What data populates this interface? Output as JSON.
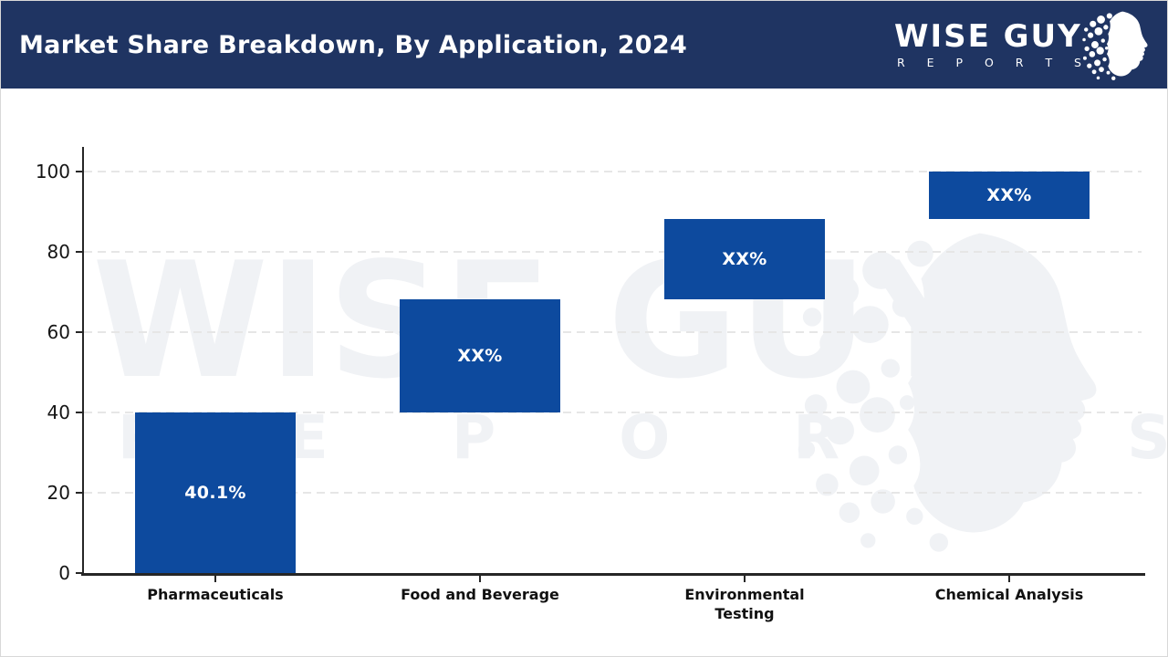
{
  "header": {
    "title": "Market Share Breakdown, By Application, 2024",
    "logo": {
      "line1": "WISE GUY",
      "line2": "R E P O R T S",
      "icon": "dotted-head-profile-icon"
    }
  },
  "watermark": {
    "line1": "WISE GUY",
    "line2": "R E P O R T S",
    "icon": "dotted-head-profile-icon"
  },
  "colors": {
    "header_bg": "#1f3462",
    "bar": "#0d4a9e",
    "axis": "#262626",
    "grid": "#e6e6e6",
    "text": "#111111",
    "tick_text": "#151515",
    "watermark": "#f0f2f5",
    "border": "#d8d8d8",
    "bar_label": "#ffffff"
  },
  "chart_data": {
    "type": "bar",
    "subtype": "waterfall",
    "title": "Market Share Breakdown, By Application, 2024",
    "xlabel": "",
    "ylabel": "",
    "categories": [
      "Pharmaceuticals",
      "Food and Beverage",
      "Environmental Testing",
      "Chemical Analysis"
    ],
    "categories_display": [
      "Pharmaceuticals",
      "Food and Beverage",
      "Environmental\nTesting",
      "Chemical Analysis"
    ],
    "segments": [
      {
        "category": "Pharmaceuticals",
        "start": 0,
        "end": 40.1,
        "label": "40.1%",
        "masked": false
      },
      {
        "category": "Food and Beverage",
        "start": 40.1,
        "end": 68.1,
        "label": "XX%",
        "masked": true
      },
      {
        "category": "Environmental Testing",
        "start": 68.1,
        "end": 88.1,
        "label": "XX%",
        "masked": true
      },
      {
        "category": "Chemical Analysis",
        "start": 88.1,
        "end": 100,
        "label": "XX%",
        "masked": true
      }
    ],
    "y_ticks": [
      0,
      20,
      40,
      60,
      80,
      100
    ],
    "ylim": [
      0,
      106
    ],
    "grid": "dashed-horizontal",
    "legend": "none"
  }
}
